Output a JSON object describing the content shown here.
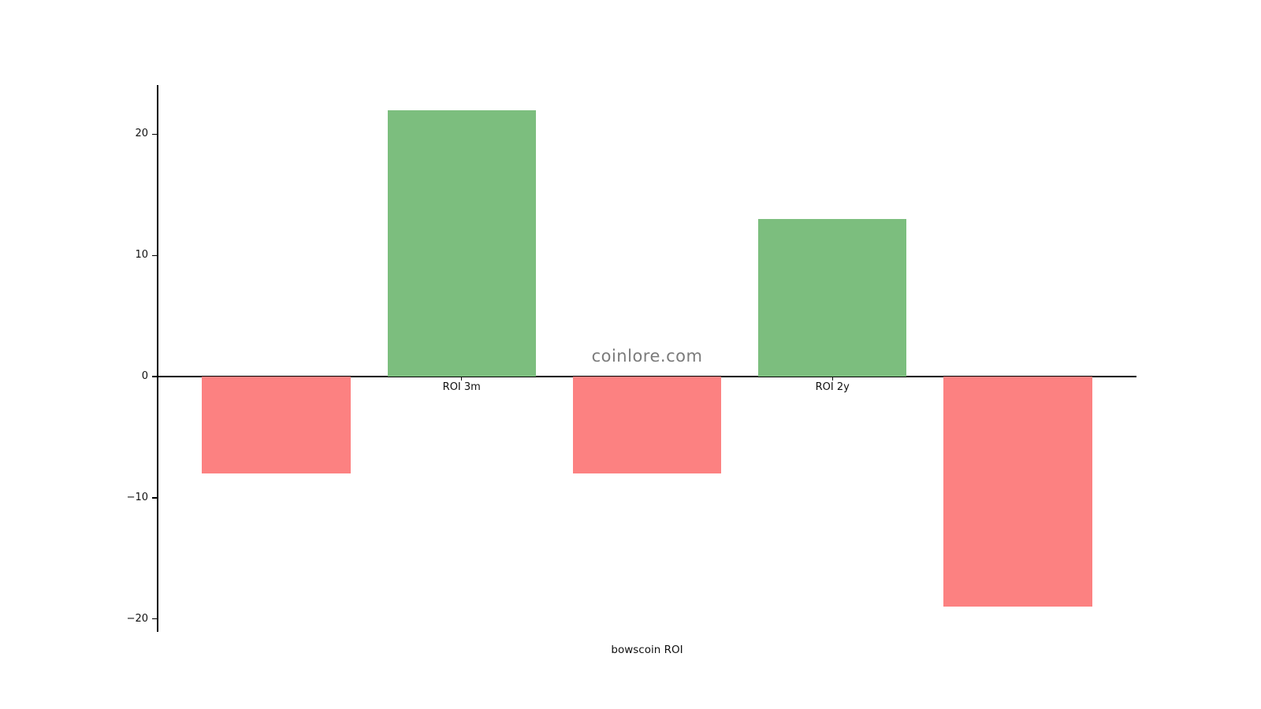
{
  "page": {
    "background_color": "#ffffff"
  },
  "watermark": {
    "text": "coinlore.com",
    "color": "#7b7b7b"
  },
  "chart_data": {
    "type": "bar",
    "title": "bowscoin ROI",
    "categories": [
      "",
      "ROI 3m",
      "",
      "ROI 2y",
      ""
    ],
    "values": [
      -8,
      22,
      -8,
      13,
      -19
    ],
    "bar_colors": [
      "#fc8181",
      "#7cbe7e",
      "#fc8181",
      "#7cbe7e",
      "#fc8181"
    ],
    "positive_color": "#7cbe7e",
    "negative_color": "#fc8181",
    "axis_color": "#000000",
    "tick_label_color": "#111111",
    "yticks": [
      20,
      10,
      0,
      -10,
      -20
    ],
    "ylim": [
      -21.05,
      24.05
    ],
    "xlim": [
      -0.64,
      4.64
    ],
    "bar_width": 0.8,
    "grid": false,
    "legend": null,
    "xlabel": "",
    "ylabel": ""
  }
}
